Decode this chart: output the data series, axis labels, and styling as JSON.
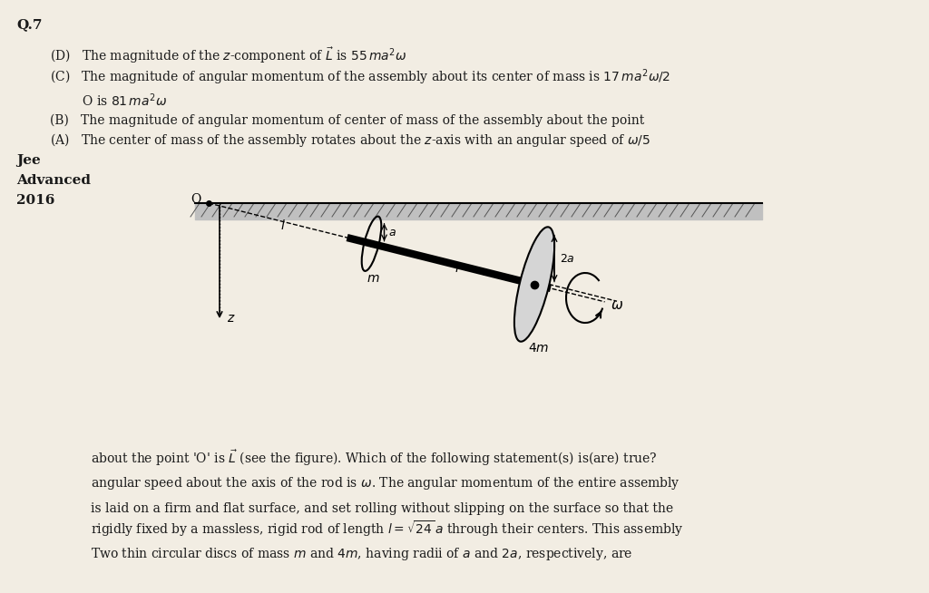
{
  "bg_color": "#f2ede3",
  "text_color": "#1a1a1a",
  "question_number": "Q.7",
  "label_jee": "Jee",
  "label_advanced": "Advanced",
  "label_year": "2016",
  "option_A": "(A)   The center of mass of the assembly rotates about the $z$-axis with an angular speed of $\\omega/5$",
  "option_B1": "(B)   The magnitude of angular momentum of center of mass of the assembly about the point",
  "option_B2": "        O is $81\\,ma^2\\omega$",
  "option_C": "(C)   The magnitude of angular momentum of the assembly about its center of mass is $17\\,ma^2\\omega/2$",
  "option_D": "(D)   The magnitude of the $z$-component of $\\vec{L}$ is $55\\,ma^2\\omega$"
}
